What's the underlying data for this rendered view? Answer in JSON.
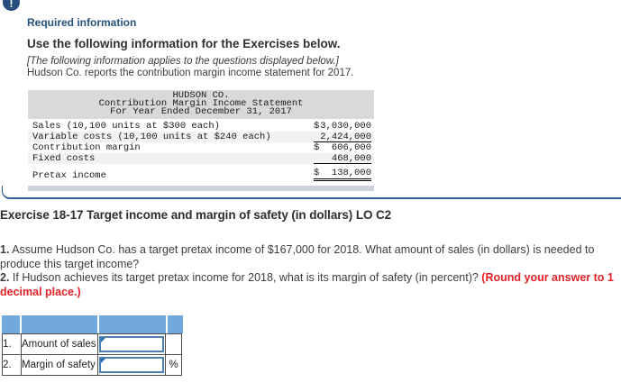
{
  "required_info": {
    "alert_symbol": "!",
    "heading": "Required information",
    "subheading": "Use the following information for the Exercises below.",
    "note_italic": "[The following information applies to the questions displayed below.]",
    "note_text": "Hudson Co. reports the contribution margin income statement for 2017."
  },
  "income_statement": {
    "company": "HUDSON CO.",
    "statement_title": "Contribution Margin Income Statement",
    "period": "For Year Ended December 31, 2017",
    "rows": [
      {
        "label": "Sales (10,100 units at $300 each)",
        "currency": "$",
        "value": "3,030,000"
      },
      {
        "label": "Variable costs (10,100 units at $240 each)",
        "currency": "",
        "value": "2,424,000"
      },
      {
        "label": "Contribution margin",
        "currency": "$",
        "value": "606,000"
      },
      {
        "label": "Fixed costs",
        "currency": "",
        "value": "468,000"
      },
      {
        "label": "Pretax income",
        "currency": "$",
        "value": "138,000"
      }
    ]
  },
  "exercise": {
    "title": "Exercise 18-17 Target income and margin of safety (in dollars) LO C2",
    "q1_number": "1.",
    "q1_text": " Assume Hudson Co. has a target pretax income of $167,000 for 2018. What amount of sales (in dollars) is needed to produce this target income?",
    "q2_number": "2.",
    "q2_text": " If Hudson achieves its target pretax income for 2018, what is its margin of safety (in percent)? ",
    "q2_instruction": "(Round your answer to 1 decimal place.)"
  },
  "answer_table": {
    "rows": [
      {
        "number": "1.",
        "label": "Amount of sales",
        "input_value": "",
        "suffix": ""
      },
      {
        "number": "2.",
        "label": "Margin of safety",
        "input_value": "",
        "suffix": "%"
      }
    ]
  },
  "colors": {
    "navy_accent": "#26527E",
    "panel_border": "#30608F",
    "statement_header_gray": "#D9D9D9",
    "statement_footer_strip": "#CCD1DD",
    "answer_header_blue": "#6FA8DC",
    "input_border_blue": "#4D7FB0",
    "instruction_red": "#E32227"
  }
}
